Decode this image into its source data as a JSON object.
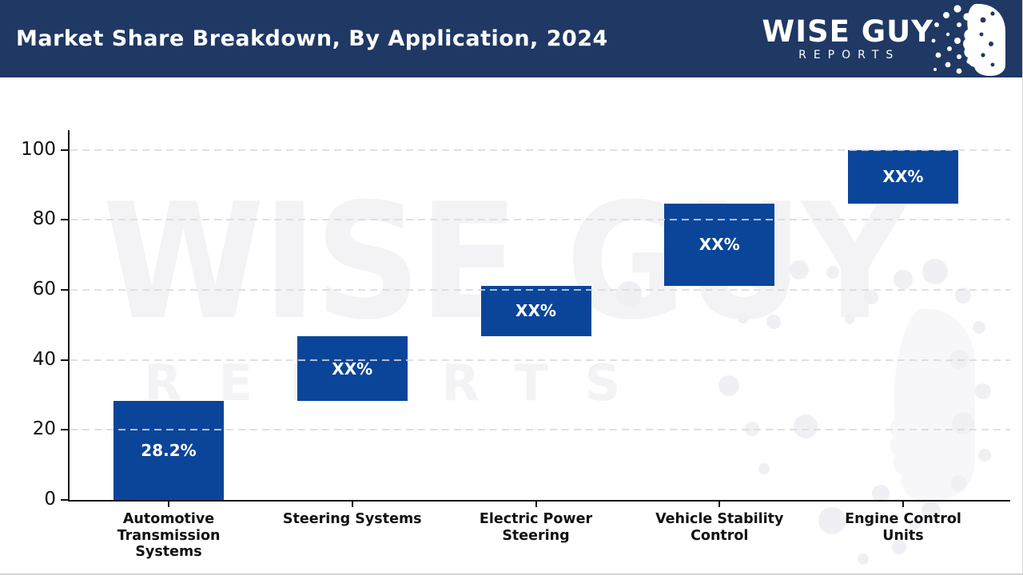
{
  "header": {
    "title": "Market Share Breakdown, By Application, 2024",
    "logo": {
      "line1": "WISE GUY",
      "line2": "REPORTS"
    }
  },
  "watermark": {
    "line1": "WISE GUY",
    "line2": "REPORTS"
  },
  "chart_data": {
    "type": "bar",
    "subtype": "waterfall",
    "title": "Market Share Breakdown, By Application, 2024",
    "categories": [
      "Automotive\nTransmission\nSystems",
      "Steering Systems",
      "Electric Power\nSteering",
      "Vehicle Stability\nControl",
      "Engine Control\nUnits"
    ],
    "segments": [
      {
        "name": "Automotive Transmission Systems",
        "start": 0,
        "end": 28.2,
        "value_label": "28.2%"
      },
      {
        "name": "Steering Systems",
        "start": 28.2,
        "end": 46.8,
        "value_label": "XX%"
      },
      {
        "name": "Electric Power Steering",
        "start": 46.8,
        "end": 61.2,
        "value_label": "XX%"
      },
      {
        "name": "Vehicle Stability Control",
        "start": 61.2,
        "end": 84.6,
        "value_label": "XX%"
      },
      {
        "name": "Engine Control Units",
        "start": 84.6,
        "end": 100,
        "value_label": "XX%"
      }
    ],
    "ylim": [
      0,
      100
    ],
    "yticks": [
      0,
      20,
      40,
      60,
      80,
      100
    ],
    "grid": {
      "axis": "y",
      "style": "dashed",
      "drawn_over_bars": true
    },
    "legend": "none",
    "bar_color": "#0b4599",
    "value_label_color": "#ffffff"
  },
  "colors": {
    "header_bg": "#1f3864",
    "bar": "#0b4599",
    "axis": "#111111",
    "gridline": "#d9d9d9",
    "watermark": "#f3f3f6",
    "background": "#ffffff"
  }
}
